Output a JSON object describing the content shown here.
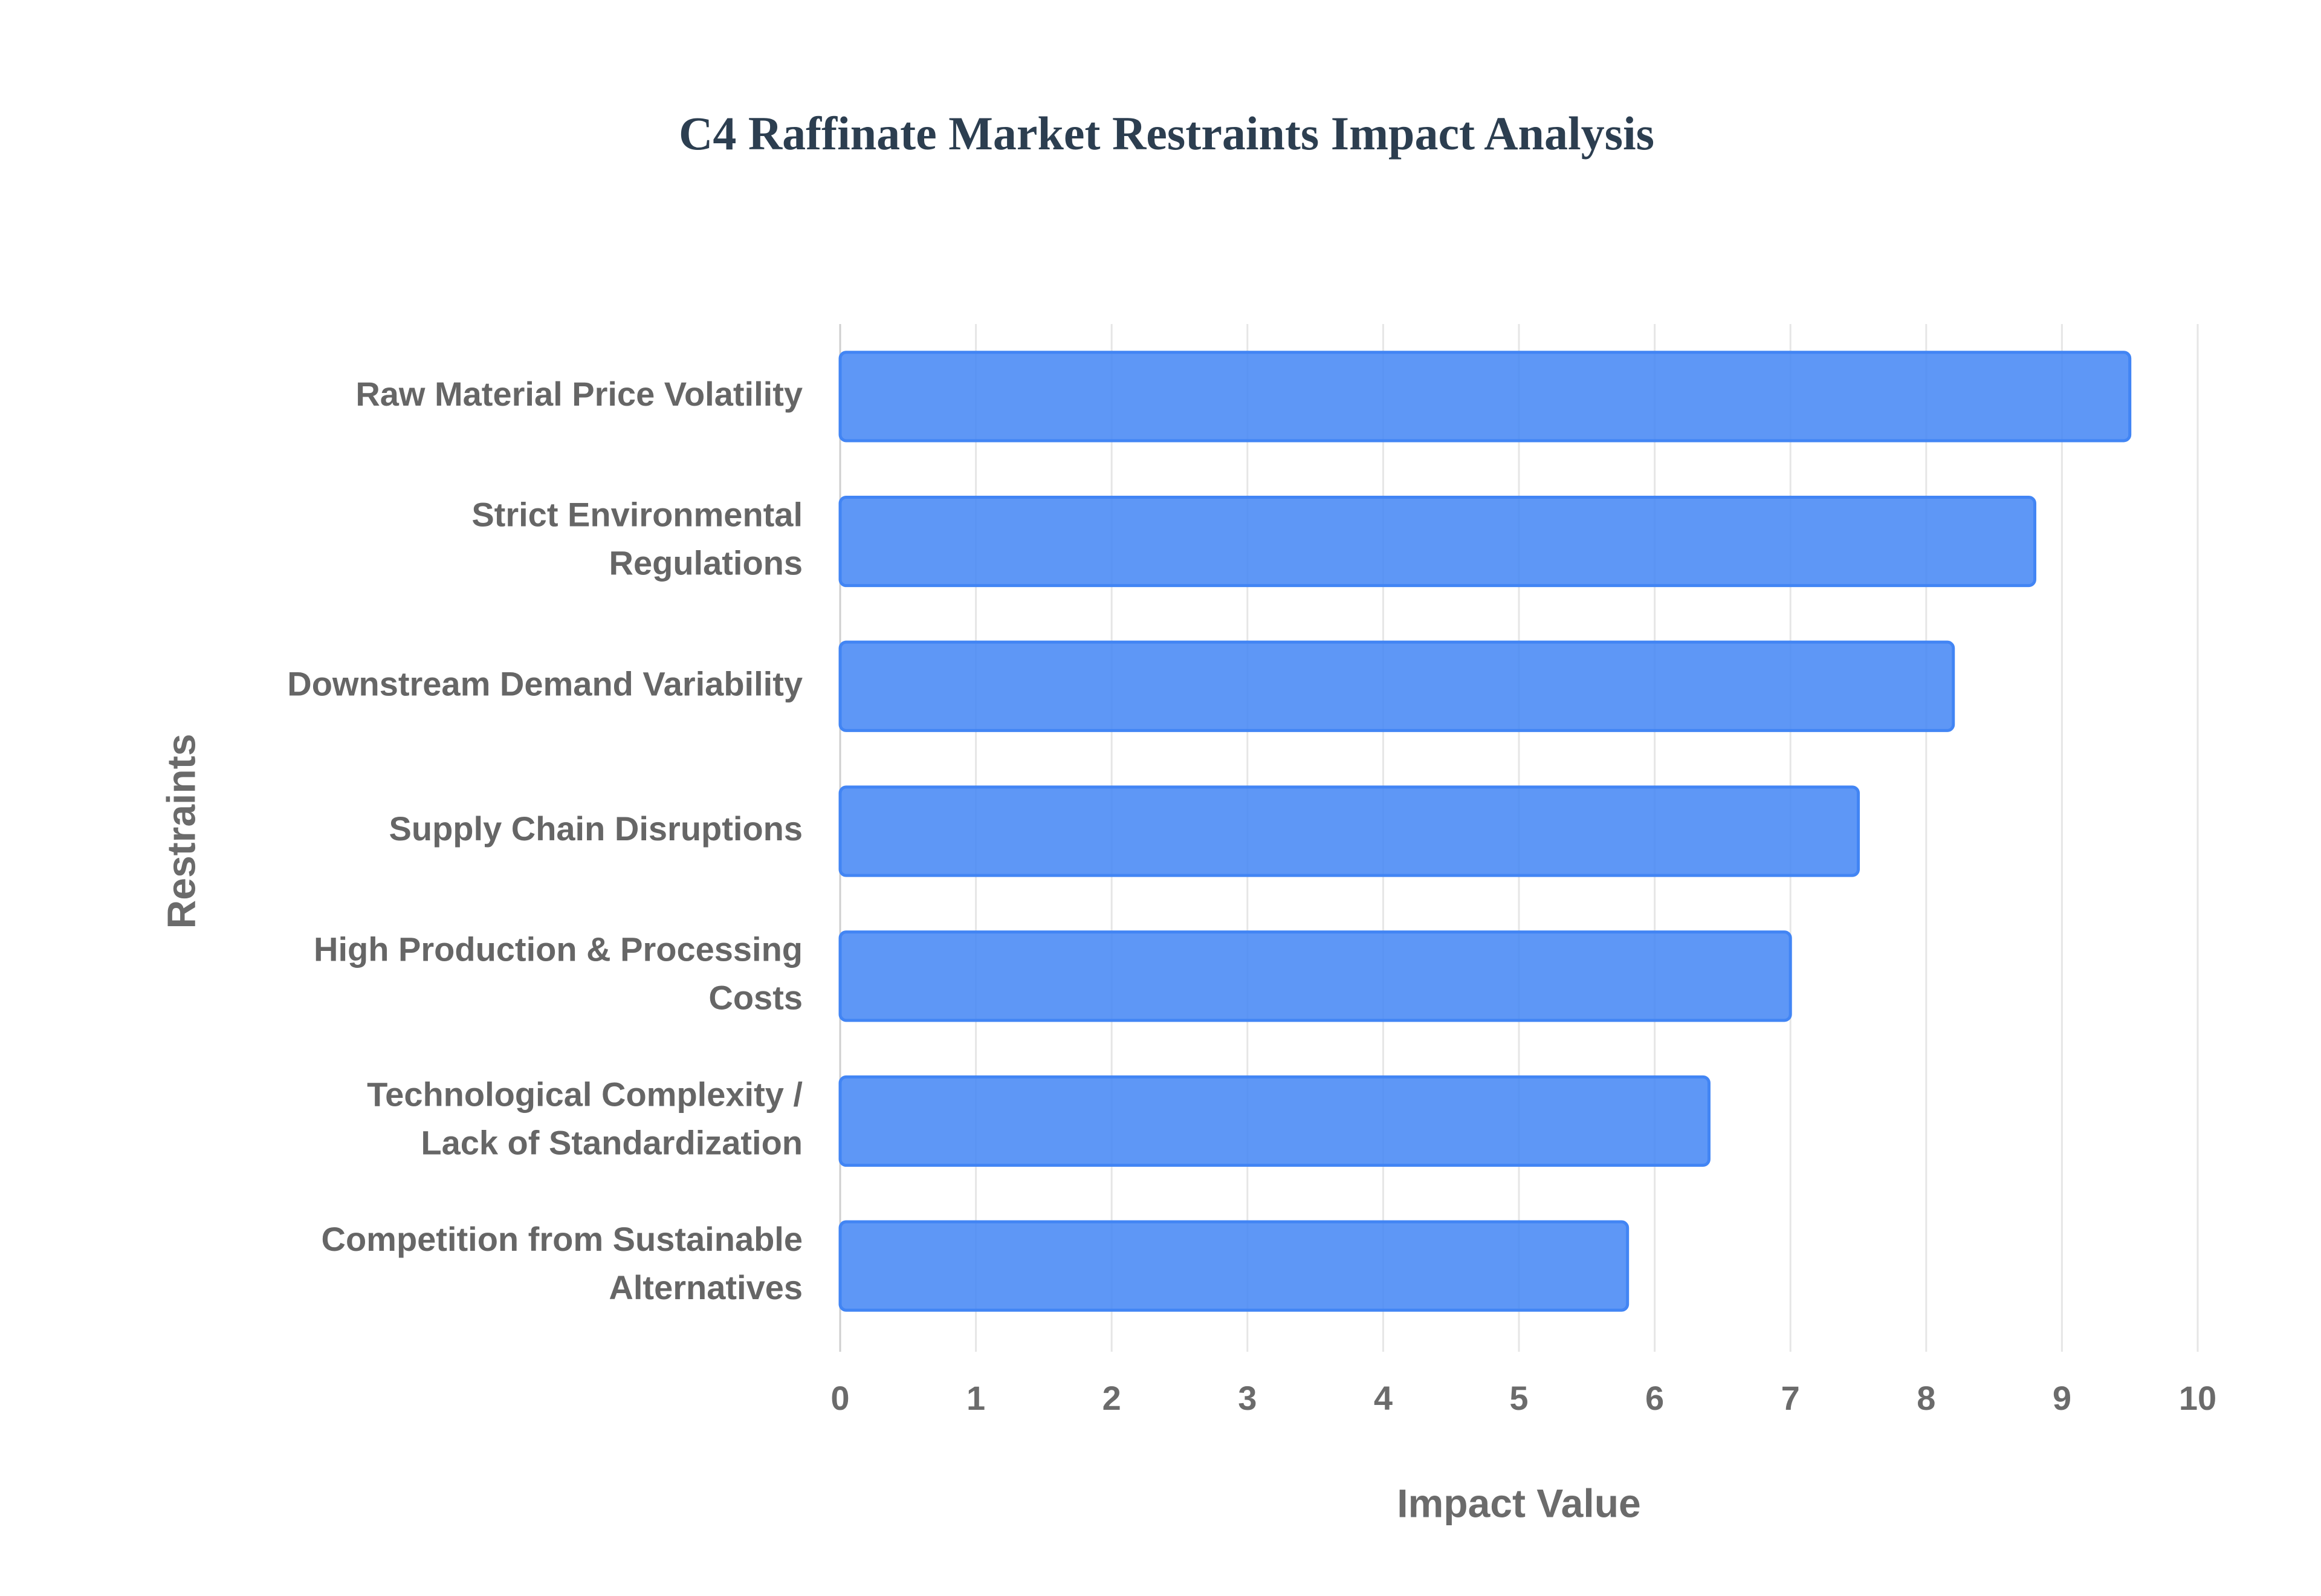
{
  "chart_data": {
    "type": "bar",
    "orientation": "horizontal",
    "title": "C4 Raffinate Market Restraints Impact Analysis",
    "x_label": "Impact Value",
    "y_label": "Restraints",
    "categories": [
      "Raw Material Price Volatility",
      "Strict Environmental Regulations",
      "Downstream Demand Variability",
      "Supply Chain Disruptions",
      "High Production & Processing Costs",
      "Technological Complexity / Lack of Standardization",
      "Competition from Sustainable Alternatives"
    ],
    "values": [
      9.5,
      8.8,
      8.2,
      7.5,
      7.0,
      6.4,
      5.8
    ],
    "color": "#4285f4",
    "xlim": [
      0,
      10
    ],
    "xticks": [
      0,
      1,
      2,
      3,
      4,
      5,
      6,
      7,
      8,
      9,
      10
    ],
    "grid": true
  }
}
